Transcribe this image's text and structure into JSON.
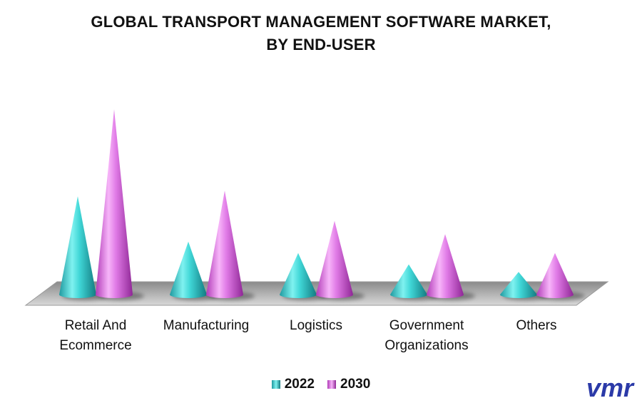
{
  "chart_data": {
    "type": "bar",
    "title": "GLOBAL TRANSPORT MANAGEMENT SOFTWARE MARKET,",
    "subtitle": "BY END-USER",
    "categories": [
      {
        "line1": "Retail And",
        "line2": "Ecommerce"
      },
      {
        "line1": "Manufacturing",
        "line2": ""
      },
      {
        "line1": "Logistics",
        "line2": ""
      },
      {
        "line1": "Government",
        "line2": "Organizations"
      },
      {
        "line1": "Others",
        "line2": ""
      }
    ],
    "series": [
      {
        "name": "2022",
        "values": [
          5.2,
          2.8,
          2.2,
          1.6,
          1.2
        ],
        "color": "#3fd6d6"
      },
      {
        "name": "2030",
        "values": [
          9.8,
          5.5,
          3.9,
          3.2,
          2.2
        ],
        "color": "#e07ae6"
      }
    ],
    "ylim": [
      0,
      10
    ],
    "mark_shape": "cone",
    "grid": false,
    "legend_position": "bottom"
  },
  "legend": {
    "label_2022": "2022",
    "label_2030": "2030"
  },
  "logo": {
    "text": "vmr",
    "color": "#2b3aa8"
  }
}
